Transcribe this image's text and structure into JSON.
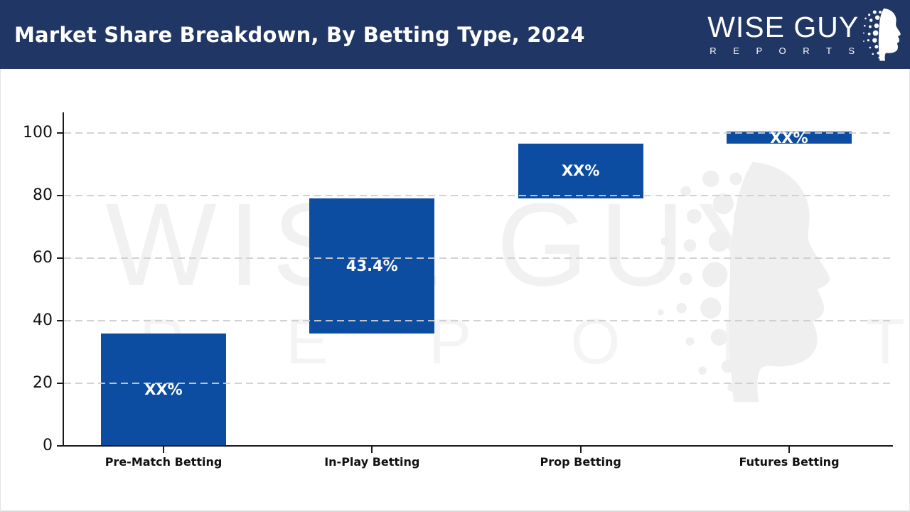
{
  "header": {
    "title": "Market Share Breakdown, By Betting Type, 2024",
    "logo": {
      "wordmark": "WISE GUY",
      "subtitle": "R E P O R T S"
    }
  },
  "watermark": {
    "line1": "WISE GUY",
    "line2": "R E P O R T S"
  },
  "chart_data": {
    "type": "bar",
    "variant": "waterfall-floating-bars",
    "title": "Market Share Breakdown, By Betting Type, 2024",
    "categories": [
      "Pre-Match Betting",
      "In-Play Betting",
      "Prop Betting",
      "Futures Betting"
    ],
    "bars": [
      {
        "category": "Pre-Match Betting",
        "start": 0,
        "end": 35.8,
        "value_label": "XX%"
      },
      {
        "category": "In-Play Betting",
        "start": 35.8,
        "end": 79.2,
        "value_label": "43.4%"
      },
      {
        "category": "Prop Betting",
        "start": 79.2,
        "end": 96.6,
        "value_label": "XX%"
      },
      {
        "category": "Futures Betting",
        "start": 96.6,
        "end": 100.4,
        "value_label": "XX%"
      }
    ],
    "xlabel": "",
    "ylabel": "",
    "ylim": [
      0,
      100
    ],
    "yticks": [
      0,
      20,
      40,
      60,
      80,
      100
    ],
    "grid": "horizontal-dashed",
    "legend": "none",
    "colors": {
      "bar": "#0c4da2",
      "bar_label": "#ffffff",
      "grid": "#cecece",
      "axis": "#1a1a1a",
      "tick_label": "#111111",
      "header_bg": "#203665",
      "header_text": "#ffffff",
      "watermark": "#f1f1f1"
    }
  }
}
